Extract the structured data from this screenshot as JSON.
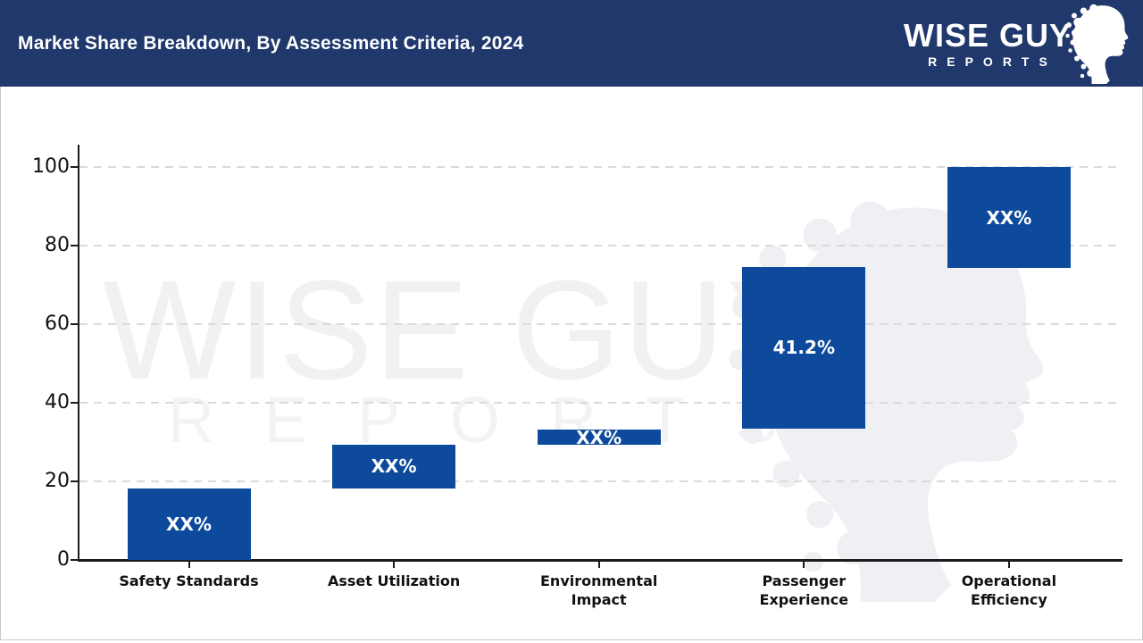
{
  "header": {
    "title": "Market Share Breakdown, By Assessment Criteria, 2024"
  },
  "logo": {
    "wordmark": "WISE GUY",
    "subtitle": "REPORTS"
  },
  "watermark": {
    "wordmark": "WISE GUY",
    "subtitle": "REPORTS"
  },
  "colors": {
    "header_bg": "#20386b",
    "bar_blue": "#0d4a9c",
    "axis": "#1c1c1c",
    "gridline": "#dadada",
    "canvas_border": "#c9c9c9",
    "watermark": "#f1f1f3"
  },
  "chart_data": {
    "type": "bar",
    "subtype": "waterfall",
    "title": "Market Share Breakdown, By Assessment Criteria, 2024",
    "categories": [
      "Safety Standards",
      "Asset Utilization",
      "Environmental Impact",
      "Passenger Experience",
      "Operational Efficiency"
    ],
    "category_label_lines": [
      [
        "Safety Standards"
      ],
      [
        "Asset Utilization"
      ],
      [
        "Environmental",
        "Impact"
      ],
      [
        "Passenger",
        "Experience"
      ],
      [
        "Operational",
        "Efficiency"
      ]
    ],
    "segments": [
      {
        "category": "Safety Standards",
        "start": 0,
        "end": 18.2,
        "label": "XX%"
      },
      {
        "category": "Asset Utilization",
        "start": 18.2,
        "end": 29.3,
        "label": "XX%"
      },
      {
        "category": "Environmental Impact",
        "start": 29.4,
        "end": 33.1,
        "label": "XX%"
      },
      {
        "category": "Passenger Experience",
        "start": 33.4,
        "end": 74.6,
        "label": "41.2%"
      },
      {
        "category": "Operational Efficiency",
        "start": 74.3,
        "end": 100,
        "label": "XX%"
      }
    ],
    "xlabel": "",
    "ylabel": "",
    "ylim": [
      0,
      100
    ],
    "yticks": [
      "0",
      "20",
      "40",
      "60",
      "80",
      "100"
    ],
    "grid": "horizontal-dashed",
    "legend": "none",
    "bar_color": "#0d4a9c",
    "bar_label_color": "#ffffff"
  }
}
